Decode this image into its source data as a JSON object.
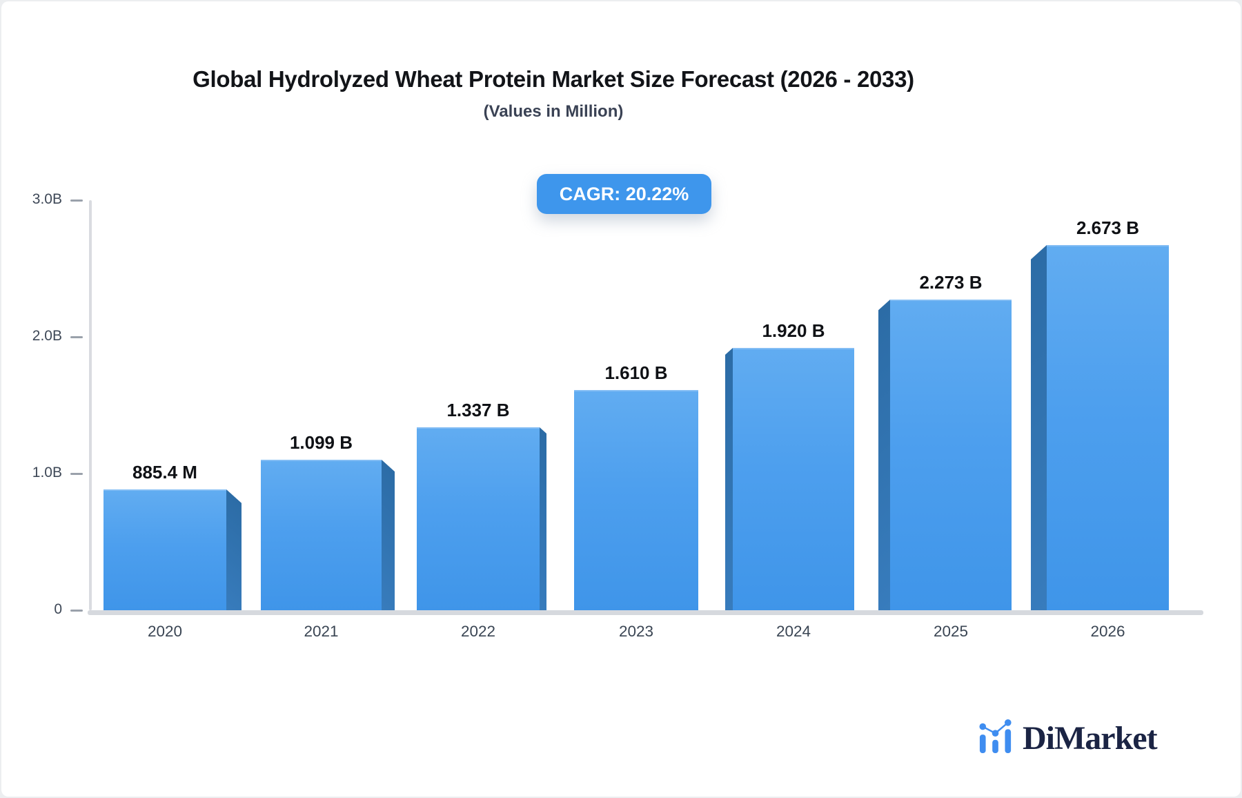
{
  "header": {
    "title": "Global Hydrolyzed Wheat Protein Market Size Forecast (2026 - 2033)",
    "subtitle": "(Values in Million)",
    "cagr_badge": "CAGR: 20.22%"
  },
  "chart_data": {
    "type": "bar",
    "title": "Global Hydrolyzed Wheat Protein Market Size Forecast (2026 - 2033)",
    "subtitle": "(Values in Million)",
    "annotation": "CAGR: 20.22%",
    "categories": [
      "2020",
      "2021",
      "2022",
      "2023",
      "2024",
      "2025",
      "2026"
    ],
    "values_millions": [
      885.4,
      1099,
      1337,
      1610,
      1920,
      2273,
      2673
    ],
    "value_labels": [
      "885.4 M",
      "1.099 B",
      "1.337 B",
      "1.610 B",
      "1.920 B",
      "2.273 B",
      "2.673 B"
    ],
    "ylabel": "",
    "xlabel": "",
    "ylim_billions": [
      0,
      3
    ],
    "ytick_values_billions": [
      0,
      1,
      2,
      3
    ],
    "ytick_labels": [
      "0",
      "1.0B",
      "2.0B",
      "3.0B"
    ],
    "grid": "off",
    "legend": "none",
    "bar_color": "#4d9fee",
    "bar_side_color": "#2c6ca6",
    "style": "3d-perspective-bars"
  },
  "footer": {
    "brand": "DiMarket"
  }
}
